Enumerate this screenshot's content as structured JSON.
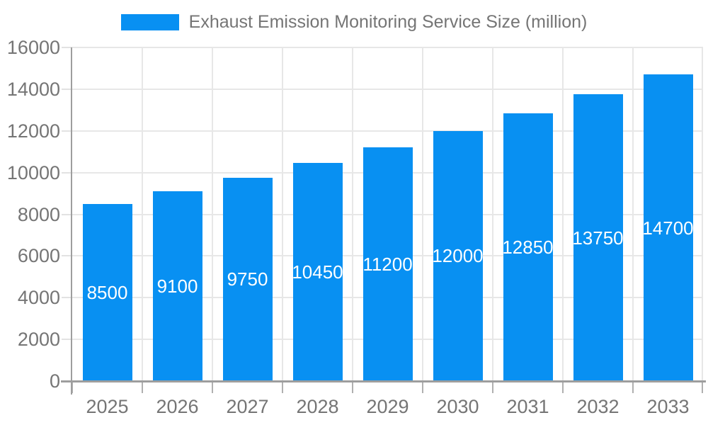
{
  "chart_data": {
    "type": "bar",
    "title": "Exhaust Emission Monitoring Service Size (million)",
    "categories": [
      "2025",
      "2026",
      "2027",
      "2028",
      "2029",
      "2030",
      "2031",
      "2032",
      "2033"
    ],
    "values": [
      8500,
      9100,
      9750,
      10450,
      11200,
      12000,
      12850,
      13750,
      14700
    ],
    "xlabel": "",
    "ylabel": "",
    "ylim": [
      0,
      16000
    ],
    "ytick_step": 2000,
    "yticks": [
      0,
      2000,
      4000,
      6000,
      8000,
      10000,
      12000,
      14000,
      16000
    ],
    "grid": true,
    "legend_position": "top-center",
    "colors": {
      "bar": "#0890F2",
      "bar_label": "#FFFFFF",
      "axis_text": "#757575",
      "grid_line": "#E7E7E7",
      "axis_line": "#9E9E9E",
      "tick": "#B0B0B0",
      "background": "#FFFFFF"
    }
  }
}
